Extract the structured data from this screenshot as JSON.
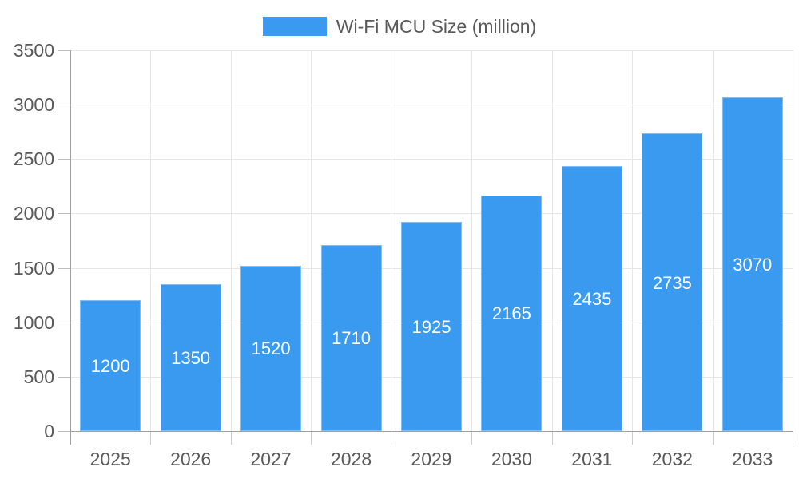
{
  "legend": {
    "label": "Wi-Fi MCU Size (million)"
  },
  "chart_data": {
    "type": "bar",
    "title": "Wi-Fi MCU Size (million)",
    "categories": [
      "2025",
      "2026",
      "2027",
      "2028",
      "2029",
      "2030",
      "2031",
      "2032",
      "2033"
    ],
    "series": [
      {
        "name": "Wi-Fi MCU Size (million)",
        "values": [
          1200,
          1350,
          1520,
          1710,
          1925,
          2165,
          2435,
          2735,
          3070
        ]
      }
    ],
    "value_labels_shown": true,
    "xlabel": "",
    "ylabel": "",
    "ylim": [
      0,
      3500
    ],
    "ytick_step": 500,
    "yticks": [
      0,
      500,
      1000,
      1500,
      2000,
      2500,
      3000,
      3500
    ],
    "grid": true,
    "legend_position": "top",
    "colors": {
      "bar_fill": "#3a9af0",
      "bar_border": "#84bdf4",
      "value_label": "#ffffff",
      "axis_text": "#595959",
      "gridline": "#e6e6e6",
      "axis_line": "#a0a0a0"
    }
  }
}
